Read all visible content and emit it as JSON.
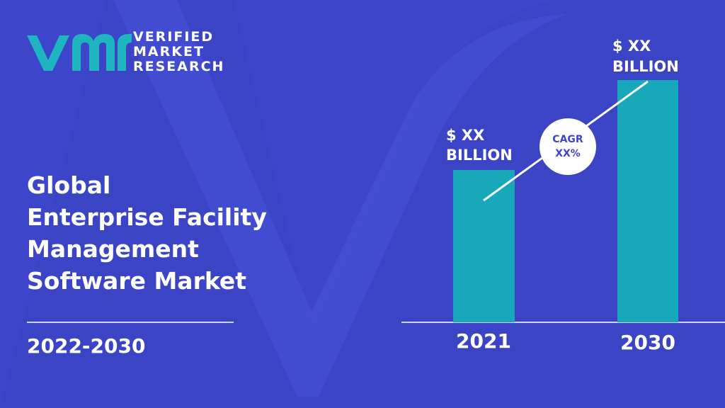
{
  "logo": {
    "lines": [
      "VERIFIED",
      "MARKET",
      "RESEARCH"
    ]
  },
  "title_lines": [
    "Global",
    "Enterprise Facility",
    "Management",
    "Software Market"
  ],
  "period": "2022-2030",
  "bars": [
    {
      "year": "2021",
      "label_lines": [
        "$ XX",
        "BILLION"
      ]
    },
    {
      "year": "2030",
      "label_lines": [
        "$ XX",
        "BILLION"
      ]
    }
  ],
  "cagr": {
    "lines": [
      "CAGR",
      "XX%"
    ]
  }
}
